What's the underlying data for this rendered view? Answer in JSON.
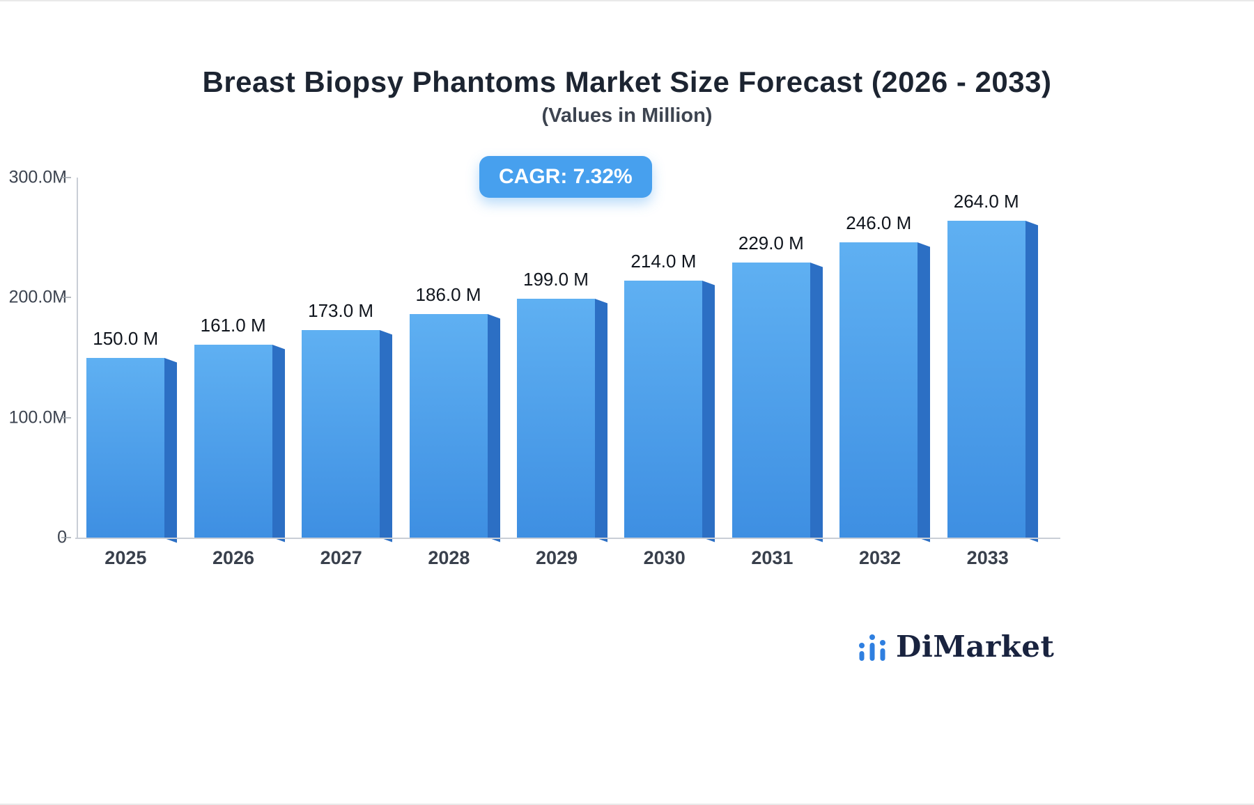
{
  "title": "Breast Biopsy Phantoms Market Size Forecast (2026 - 2033)",
  "subtitle": "(Values in Million)",
  "cagr_label": "CAGR: 7.32%",
  "logo": {
    "text": "DiMarket",
    "icon": "bar-chart-icon",
    "color": "#2f7fe0"
  },
  "colors": {
    "bar_front_top": "#5fb0f2",
    "bar_front_bottom": "#3e8fe2",
    "bar_side": "#2c6fc4",
    "badge": "#47a0ee",
    "axis": "#c9ced6",
    "title_text": "#1c2431",
    "tick_text": "#3d4450"
  },
  "chart_data": {
    "type": "bar",
    "title": "Breast Biopsy Phantoms Market Size Forecast (2026 - 2033)",
    "subtitle": "(Values in Million)",
    "annotation": "CAGR: 7.32%",
    "categories": [
      "2025",
      "2026",
      "2027",
      "2028",
      "2029",
      "2030",
      "2031",
      "2032",
      "2033"
    ],
    "values": [
      150,
      161,
      173,
      186,
      199,
      214,
      229,
      246,
      264
    ],
    "value_labels": [
      "150.0 M",
      "161.0 M",
      "173.0 M",
      "186.0 M",
      "199.0 M",
      "214.0 M",
      "229.0 M",
      "246.0 M",
      "264.0 M"
    ],
    "xlabel": "",
    "ylabel": "",
    "ylim": [
      0,
      300
    ],
    "y_ticks": [
      {
        "value": 300,
        "label": "300.0M"
      },
      {
        "value": 200,
        "label": "200.0M"
      },
      {
        "value": 100,
        "label": "100.0M"
      },
      {
        "value": 0,
        "label": "0"
      }
    ],
    "grid": false,
    "legend": null,
    "bar_style": "3d-blue"
  }
}
